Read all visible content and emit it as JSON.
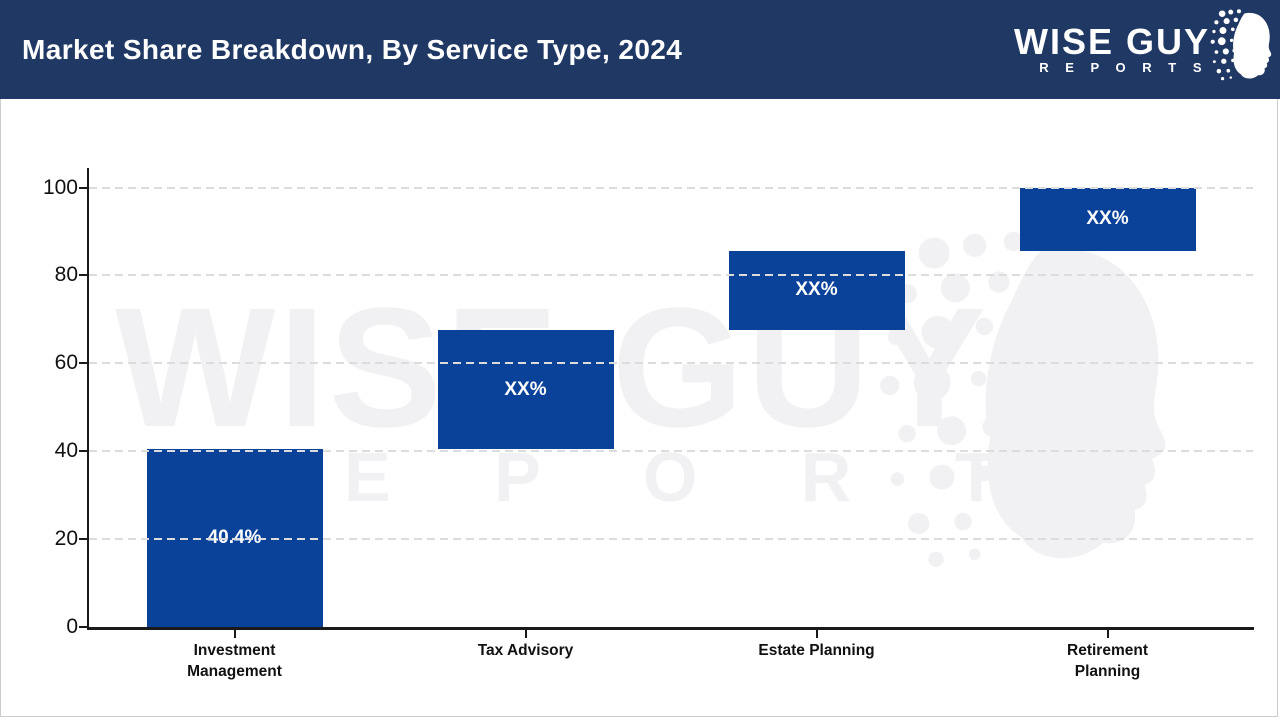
{
  "header": {
    "title": "Market Share Breakdown, By Service Type, 2024",
    "logo": {
      "line1": "WISE GUY",
      "line2": "R E P O R T S"
    }
  },
  "watermark": {
    "line1": "WISE GUY",
    "line2": "R E P O R T S"
  },
  "colors": {
    "header_bg": "#203864",
    "bar": "#0a4199",
    "grid": "#dcdcdc",
    "axis": "#1a1a1a",
    "watermark": "#f1f1f3",
    "bar_label": "#ffffff",
    "tick_label": "#111111"
  },
  "chart_data": {
    "type": "bar",
    "subtype": "waterfall (cumulative market share segments stacking to 100%)",
    "title": "Market Share Breakdown, By Service Type, 2024",
    "categories": [
      "Investment\nManagement",
      "Tax Advisory",
      "Estate Planning",
      "Retirement\nPlanning"
    ],
    "segments": [
      {
        "category": "Investment Management",
        "start": 0,
        "end": 40.4,
        "value": 40.4,
        "value_label": "40.4%"
      },
      {
        "category": "Tax Advisory",
        "start": 40.4,
        "end": 67.6,
        "value": 27.2,
        "value_label": "XX%"
      },
      {
        "category": "Estate Planning",
        "start": 67.6,
        "end": 85.6,
        "value": 18.0,
        "value_label": "XX%"
      },
      {
        "category": "Retirement Planning",
        "start": 85.6,
        "end": 100,
        "value": 14.4,
        "value_label": "XX%"
      }
    ],
    "ylim": [
      0,
      100
    ],
    "yticks": [
      0,
      20,
      40,
      60,
      80,
      100
    ],
    "xlabel": "",
    "ylabel": "",
    "grid": "horizontal dashed",
    "legend": "none"
  }
}
